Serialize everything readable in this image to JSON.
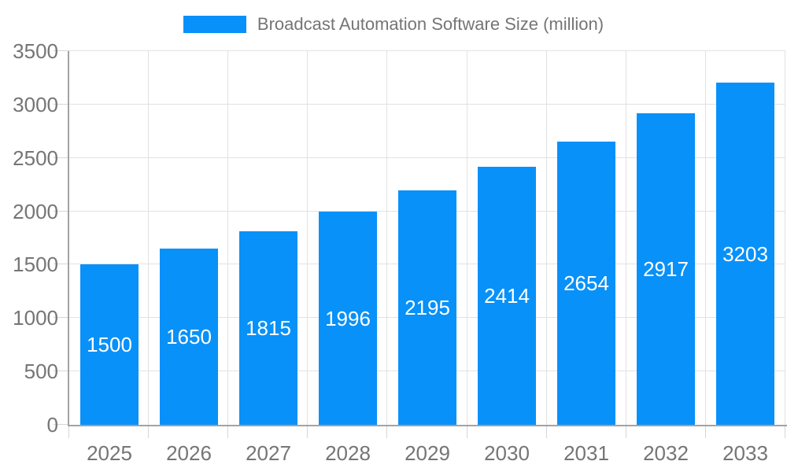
{
  "legend": {
    "label": "Broadcast Automation Software Size (million)"
  },
  "chart_data": {
    "type": "bar",
    "title": "Broadcast Automation Software Size (million)",
    "categories": [
      "2025",
      "2026",
      "2027",
      "2028",
      "2029",
      "2030",
      "2031",
      "2032",
      "2033"
    ],
    "values": [
      1500,
      1650,
      1815,
      1996,
      2195,
      2414,
      2654,
      2917,
      3203
    ],
    "xlabel": "",
    "ylabel": "",
    "ylim": [
      0,
      3500
    ],
    "ytick_step": 500,
    "ytick_labels": [
      "0",
      "500",
      "1000",
      "1500",
      "2000",
      "2500",
      "3000",
      "3500"
    ],
    "grid": true,
    "legend_position": "top-center",
    "value_labels": "centered-inside-bars",
    "colors": {
      "bar": "#0891f8",
      "axis": "#a3a3a3",
      "grid": "#e2e2e2",
      "tick": "#d6d6d6",
      "text": "#757575",
      "value_label": "#ffffff",
      "background": "#ffffff"
    }
  }
}
